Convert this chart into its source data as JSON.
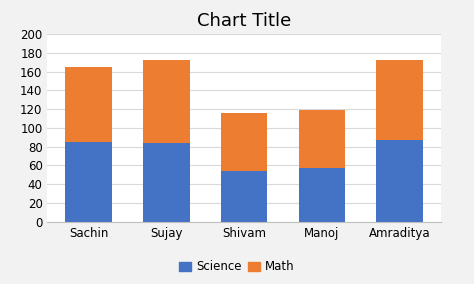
{
  "title": "Chart Title",
  "categories": [
    "Sachin",
    "Sujay",
    "Shivam",
    "Manoj",
    "Amraditya"
  ],
  "science": [
    85,
    84,
    54,
    57,
    87
  ],
  "math": [
    80,
    88,
    62,
    62,
    85
  ],
  "science_color": "#4472C4",
  "math_color": "#ED7D31",
  "ylim": [
    0,
    200
  ],
  "yticks": [
    0,
    20,
    40,
    60,
    80,
    100,
    120,
    140,
    160,
    180,
    200
  ],
  "legend_labels": [
    "Science",
    "Math"
  ],
  "outer_bg_color": "#f2f2f2",
  "chart_bg_color": "#ffffff",
  "title_fontsize": 13,
  "tick_fontsize": 8.5,
  "legend_fontsize": 8.5,
  "bar_width": 0.6
}
